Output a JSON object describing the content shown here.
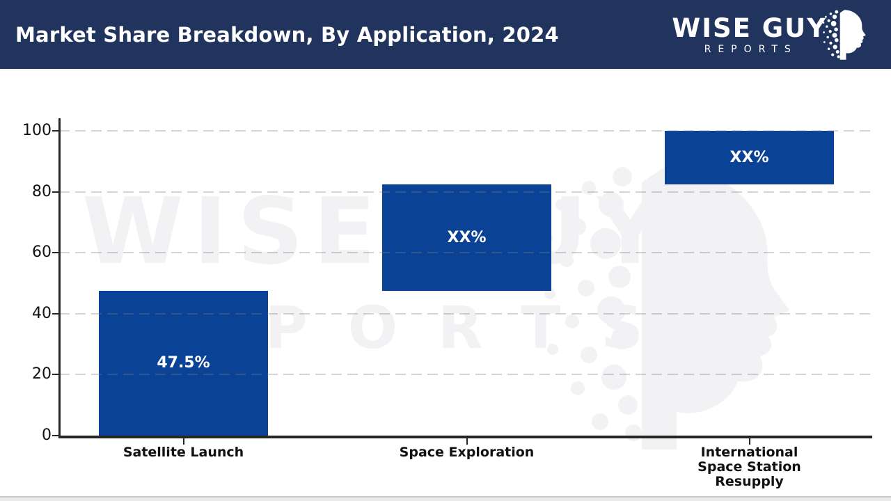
{
  "header": {
    "title": "Market Share Breakdown, By Application, 2024",
    "logo": {
      "line1": "WISE GUY",
      "line2": "REPORTS",
      "icon": "dotted-head-profile"
    }
  },
  "watermark": {
    "line1": "WISE GUY",
    "line2": "REPORTS",
    "icon": "dotted-head-profile"
  },
  "colors": {
    "header_bg": "#21345d",
    "bar_blue": "#0a4296",
    "bar_label": "#ffffff",
    "axis": "#262626",
    "tick_text": "#111111",
    "watermark": "#f2f2f5"
  },
  "chart_data": {
    "type": "bar",
    "subtype": "floating-segments",
    "title": "Market Share Breakdown, By Application, 2024",
    "categories": [
      "Satellite Launch",
      "Space Exploration",
      "International Space Station Resupply"
    ],
    "category_lines": [
      [
        "Satellite Launch"
      ],
      [
        "Space Exploration"
      ],
      [
        "International",
        "Space Station",
        "Resupply"
      ]
    ],
    "segments": [
      {
        "category": "Satellite Launch",
        "start": 0,
        "end": 47.5,
        "label": "47.5%"
      },
      {
        "category": "Space Exploration",
        "start": 47.5,
        "end": 82.5,
        "label": "XX%"
      },
      {
        "category": "International Space Station Resupply",
        "start": 82.5,
        "end": 100,
        "label": "XX%"
      }
    ],
    "ylim": [
      0,
      100
    ],
    "yticks": [
      0,
      20,
      40,
      60,
      80,
      100
    ],
    "grid": "horizontal-dashed",
    "legend": "none",
    "bar_color": "#0a4296",
    "label_color": "#ffffff"
  }
}
